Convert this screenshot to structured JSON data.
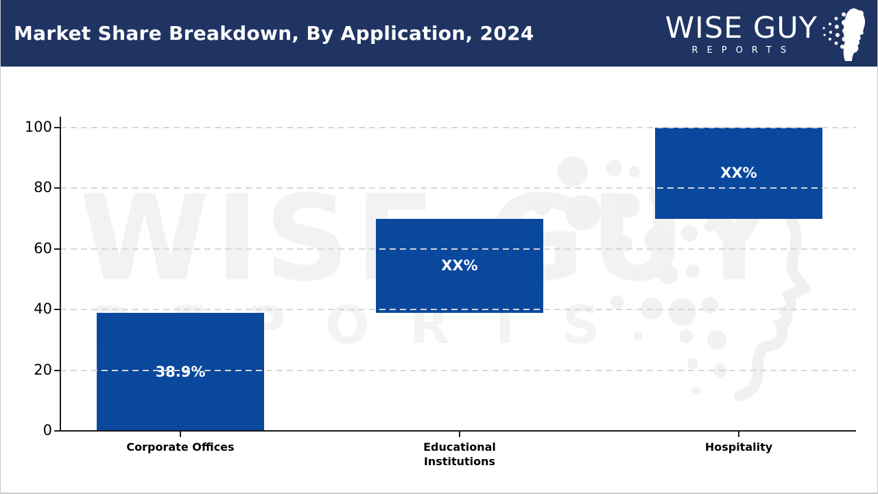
{
  "header": {
    "title": "Market Share Breakdown, By Application, 2024",
    "logo": {
      "line1": "WISE GUY",
      "line2": "REPORTS",
      "face_icon": "dotted-face-profile"
    }
  },
  "watermark": {
    "line1": "WISE GUY",
    "line2": "REPORTS"
  },
  "chart_data": {
    "type": "bar",
    "subtype": "waterfall",
    "title": "Market Share Breakdown, By Application, 2024",
    "categories": [
      "Corporate Offices",
      "Educational Institutions",
      "Hospitality"
    ],
    "category_lines": [
      [
        "Corporate Offices"
      ],
      [
        "Educational",
        "Institutions"
      ],
      [
        "Hospitality"
      ]
    ],
    "series": [
      {
        "name": "Market Share %",
        "segments": [
          {
            "category": "Corporate Offices",
            "start": 0,
            "end": 38.9,
            "label": "38.9%"
          },
          {
            "category": "Educational Institutions",
            "start": 38.9,
            "end": 70,
            "label": "XX%"
          },
          {
            "category": "Hospitality",
            "start": 70,
            "end": 100,
            "label": "XX%"
          }
        ]
      }
    ],
    "xlabel": "",
    "ylabel": "",
    "ylim": [
      0,
      100
    ],
    "yticks": [
      0,
      20,
      40,
      60,
      80,
      100
    ],
    "grid": "horizontal-dashed",
    "legend": "none",
    "bar_color": "#0A489E",
    "bar_label_color": "#ffffff",
    "header_color": "#1F3463"
  }
}
